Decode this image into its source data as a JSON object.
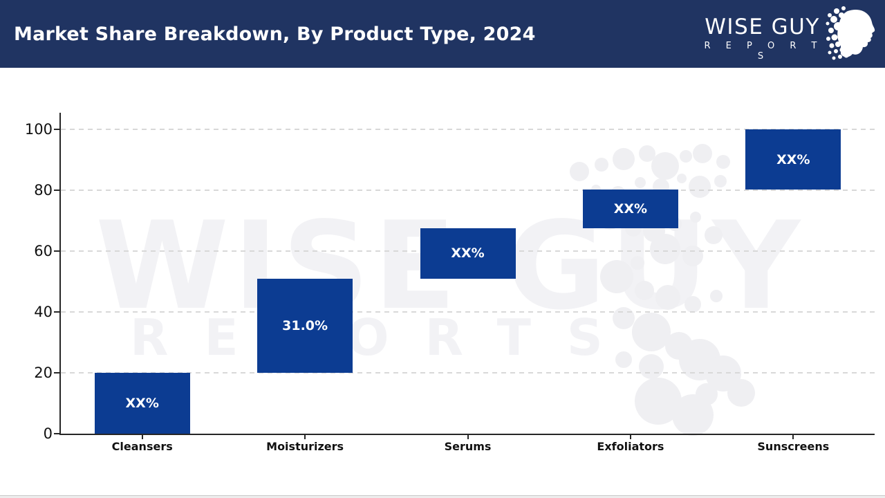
{
  "header": {
    "title": "Market Share Breakdown, By Product Type, 2024",
    "logo": {
      "line1": "WISE GUY",
      "line2": "R E P O R T S"
    }
  },
  "watermark": {
    "line1": "WISE GUY",
    "line2": "REPORTS"
  },
  "colors": {
    "header_bg": "#203462",
    "bar": "#0c3c92",
    "gridline": "#d8d8d8",
    "axis": "#262626",
    "bar_label_text": "#ffffff",
    "watermark": "#f2f2f5"
  },
  "chart_data": {
    "type": "bar",
    "variant": "waterfall",
    "title": "Market Share Breakdown, By Product Type, 2024",
    "categories": [
      "Cleansers",
      "Moisturizers",
      "Serums",
      "Exfoliators",
      "Sunscreens"
    ],
    "bars": [
      {
        "category": "Cleansers",
        "start": 0,
        "end": 20,
        "value": 20,
        "label": "XX%"
      },
      {
        "category": "Moisturizers",
        "start": 20,
        "end": 51,
        "value": 31.0,
        "label": "31.0%"
      },
      {
        "category": "Serums",
        "start": 51,
        "end": 67.5,
        "value": 16.5,
        "label": "XX%"
      },
      {
        "category": "Exfoliators",
        "start": 67.5,
        "end": 80.2,
        "value": 12.7,
        "label": "XX%"
      },
      {
        "category": "Sunscreens",
        "start": 80.2,
        "end": 100,
        "value": 19.8,
        "label": "XX%"
      }
    ],
    "xlabel": "",
    "ylabel": "",
    "ylim": [
      0,
      105.5
    ],
    "yticks": [
      0,
      20,
      40,
      60,
      80,
      100
    ],
    "grid": "dashed-horizontal",
    "legend": "none"
  }
}
